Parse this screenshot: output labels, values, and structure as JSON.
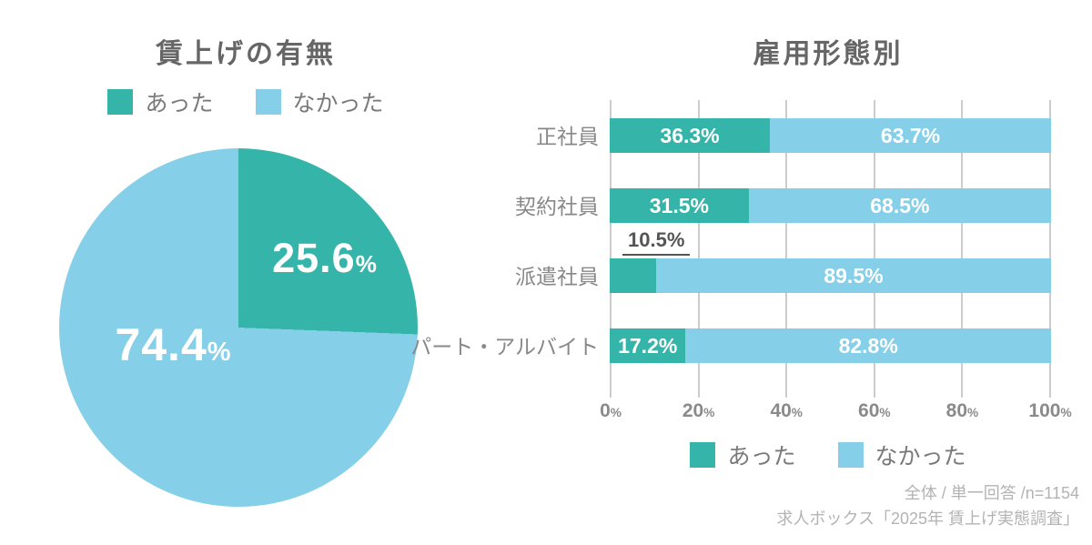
{
  "page_title": "賃上げ実態調査 結果グラフ",
  "colors": {
    "atta": "#35b5a9",
    "nakatta": "#85cfe8",
    "title_text": "#666666",
    "legend_text": "#7a7a7a",
    "row_label_text": "#888888",
    "axis_text": "#8a8a8a",
    "gridline": "#cccccc",
    "callout": "#555555",
    "footer_text": "#b3b3b3"
  },
  "chart_data": [
    {
      "type": "pie",
      "title": "賃上げの有無",
      "labels": [
        "あった",
        "なかった"
      ],
      "values": [
        25.6,
        74.4
      ],
      "value_displays": [
        "25.6",
        "74.4"
      ],
      "unit": "%",
      "colors": [
        "#35b5a9",
        "#85cfe8"
      ],
      "legend_position": "top",
      "start_angle_deg": 0,
      "direction": "clockwise"
    },
    {
      "type": "bar",
      "subtype": "horizontal-stacked",
      "title": "雇用形態別",
      "categories": [
        "正社員",
        "契約社員",
        "派遣社員",
        "パート・アルバイト"
      ],
      "series": [
        {
          "name": "あった",
          "color": "#35b5a9",
          "values": [
            36.3,
            31.5,
            10.5,
            17.2
          ]
        },
        {
          "name": "なかった",
          "color": "#85cfe8",
          "values": [
            63.7,
            68.5,
            89.5,
            82.8
          ]
        }
      ],
      "xlim": [
        0,
        100
      ],
      "x_ticks": [
        "0%",
        "20%",
        "40%",
        "60%",
        "80%",
        "100%"
      ],
      "grid": true,
      "legend_position": "bottom",
      "callout_note": "派遣社員のあった(10.5%)はバー外に引き出し線付きで表示"
    }
  ],
  "footer": {
    "line1": "全体 / 単一回答 /n=1154",
    "line2": "求人ボックス「2025年 賃上げ実態調査」"
  }
}
